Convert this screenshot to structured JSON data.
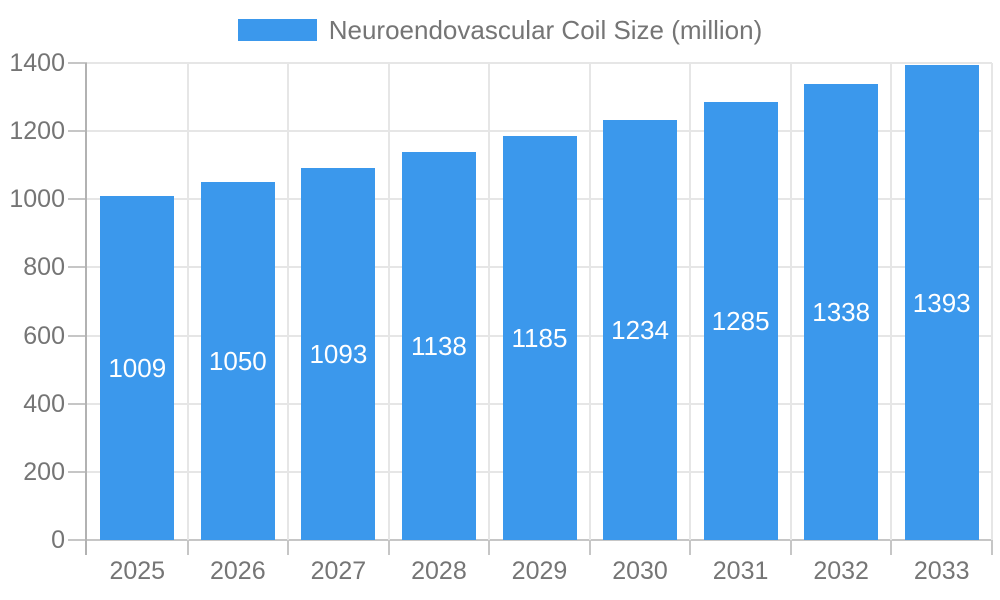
{
  "chart_data": {
    "type": "bar",
    "title": "",
    "legend_label": "Neuroendovascular Coil Size (million)",
    "legend_position": "top",
    "categories": [
      "2025",
      "2026",
      "2027",
      "2028",
      "2029",
      "2030",
      "2031",
      "2032",
      "2033"
    ],
    "values": [
      1009,
      1050,
      1093,
      1138,
      1185,
      1234,
      1285,
      1338,
      1393
    ],
    "xlabel": "",
    "ylabel": "",
    "ylim": [
      0,
      1400
    ],
    "yticks": [
      0,
      200,
      400,
      600,
      800,
      1000,
      1200,
      1400
    ],
    "grid": true,
    "bar_labels_inside": true,
    "colors": {
      "bar": "#3b98ec",
      "bar_value_text": "#ffffff",
      "axis_text": "#757575",
      "legend_text": "#757575",
      "gridline": "#e6e6e6",
      "baseline_tick": "#c6c6c6",
      "axis_line": "#b2b2b2",
      "background": "#ffffff"
    }
  }
}
